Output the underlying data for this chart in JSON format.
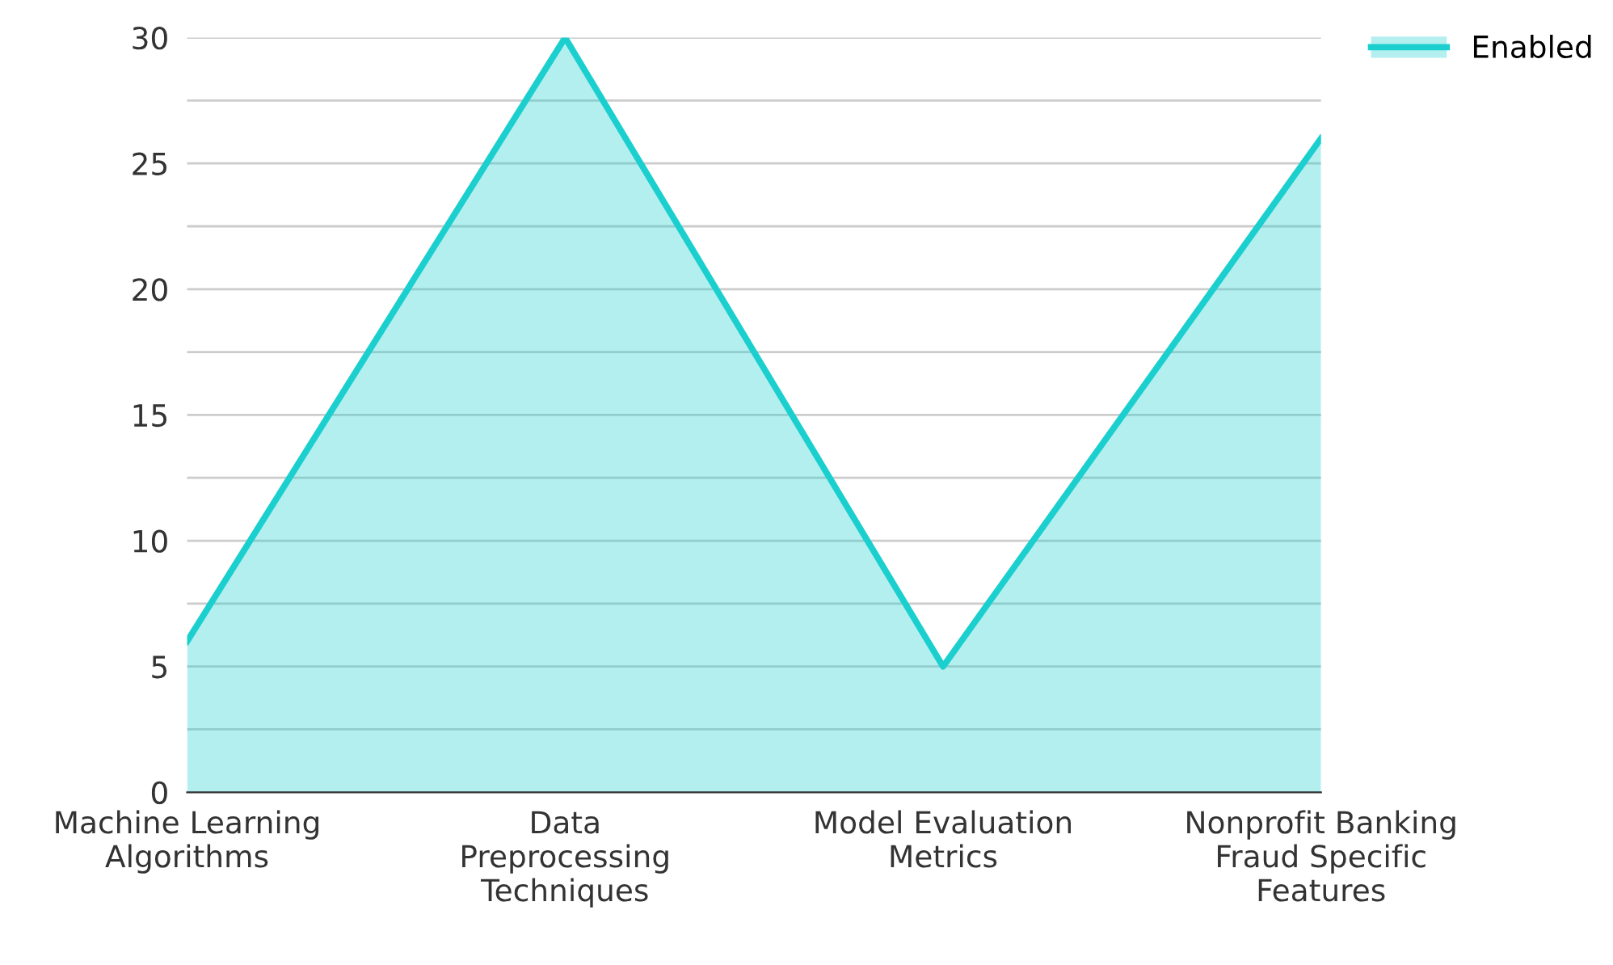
{
  "chart_data": {
    "type": "area",
    "categories": [
      "Machine Learning Algorithms",
      "Data Preprocessing Techniques",
      "Model Evaluation Metrics",
      "Nonprofit Banking Fraud Specific Features"
    ],
    "series": [
      {
        "name": "Enabled",
        "color": "#1ccfcf",
        "values": [
          6,
          30,
          5,
          26
        ]
      }
    ],
    "ylim": [
      0,
      30
    ],
    "yticks": [
      0,
      {
        "value": 2.5,
        "label": null
      },
      5,
      {
        "value": 7.5,
        "label": null
      },
      10,
      {
        "value": 12.5,
        "label": null
      },
      15,
      {
        "value": 17.5,
        "label": null
      },
      20,
      {
        "value": 22.5,
        "label": null
      },
      25,
      {
        "value": 27.5,
        "label": null
      },
      30
    ],
    "grid": "y",
    "legend": "top right"
  }
}
